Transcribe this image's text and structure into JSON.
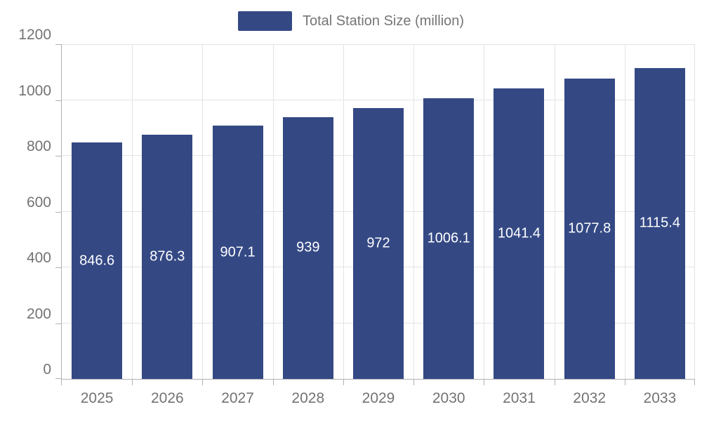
{
  "legend": {
    "items": [
      {
        "label": "Total Station Size (million)",
        "color": "#344984"
      }
    ]
  },
  "chart_data": {
    "type": "bar",
    "title": "",
    "categories": [
      "2025",
      "2026",
      "2027",
      "2028",
      "2029",
      "2030",
      "2031",
      "2032",
      "2033"
    ],
    "series": [
      {
        "name": "Total Station Size (million)",
        "color": "#344984",
        "values": [
          846.6,
          876.3,
          907.1,
          939,
          972,
          1006.1,
          1041.4,
          1077.8,
          1115.4
        ]
      }
    ],
    "xlabel": "",
    "ylabel": "",
    "ylim": [
      0,
      1200
    ],
    "y_ticks": [
      0,
      200,
      400,
      600,
      800,
      1000,
      1200
    ],
    "grid": true,
    "legend_position": "top-center",
    "bar_label_color": "#ffffff"
  },
  "colors": {
    "bar": "#344984",
    "grid_line": "#e3e3e8",
    "axis_line": "#b1b1b7",
    "axis_label": "#737373",
    "legend_text": "#757575",
    "background": "#ffffff"
  }
}
